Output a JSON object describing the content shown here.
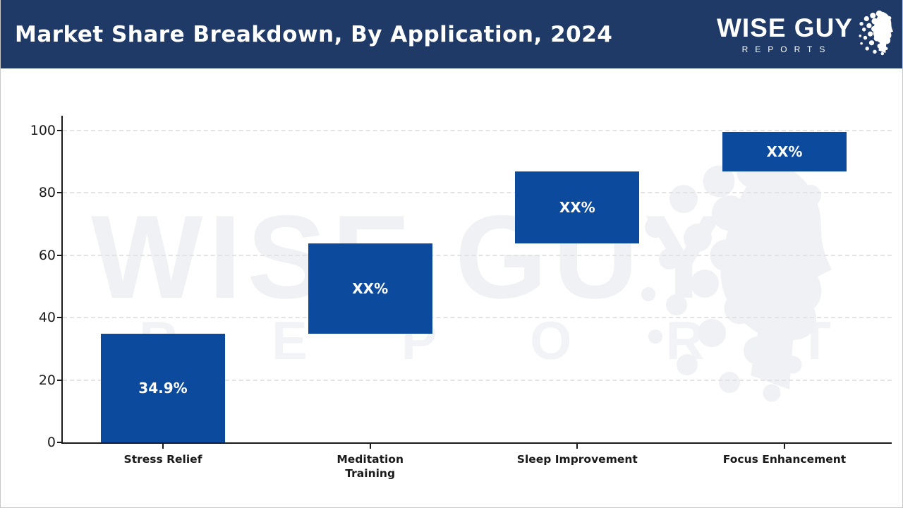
{
  "header": {
    "title": "Market Share Breakdown, By Application, 2024",
    "bg_color": "#1f3a66"
  },
  "logo": {
    "line1": "WISE GUY",
    "line2": "REPORTS",
    "icon": "head-of-dots-icon"
  },
  "watermark": {
    "line1": "WISE GUY",
    "line2": "R E P O R T S"
  },
  "chart_data": {
    "type": "bar",
    "subtype": "floating-waterfall",
    "title": "Market Share Breakdown, By Application, 2024",
    "categories": [
      "Stress Relief",
      "Meditation\nTraining",
      "Sleep Improvement",
      "Focus Enhancement"
    ],
    "bars": [
      {
        "category": "Stress Relief",
        "start": 0,
        "end": 34.9,
        "label": "34.9%"
      },
      {
        "category": "Meditation Training",
        "start": 34.9,
        "end": 63.9,
        "label": "XX%"
      },
      {
        "category": "Sleep Improvement",
        "start": 63.9,
        "end": 86.9,
        "label": "XX%"
      },
      {
        "category": "Focus Enhancement",
        "start": 86.9,
        "end": 99.6,
        "label": "XX%"
      }
    ],
    "ylim": [
      0,
      100
    ],
    "yticks": [
      0,
      20,
      40,
      60,
      80,
      100
    ],
    "xlabel": "",
    "ylabel": "",
    "grid": "horizontal-dashed",
    "legend": "none",
    "bar_color": "#0c4a9e",
    "bar_label_color": "#ffffff",
    "axis_color": "#1a1a1a"
  }
}
